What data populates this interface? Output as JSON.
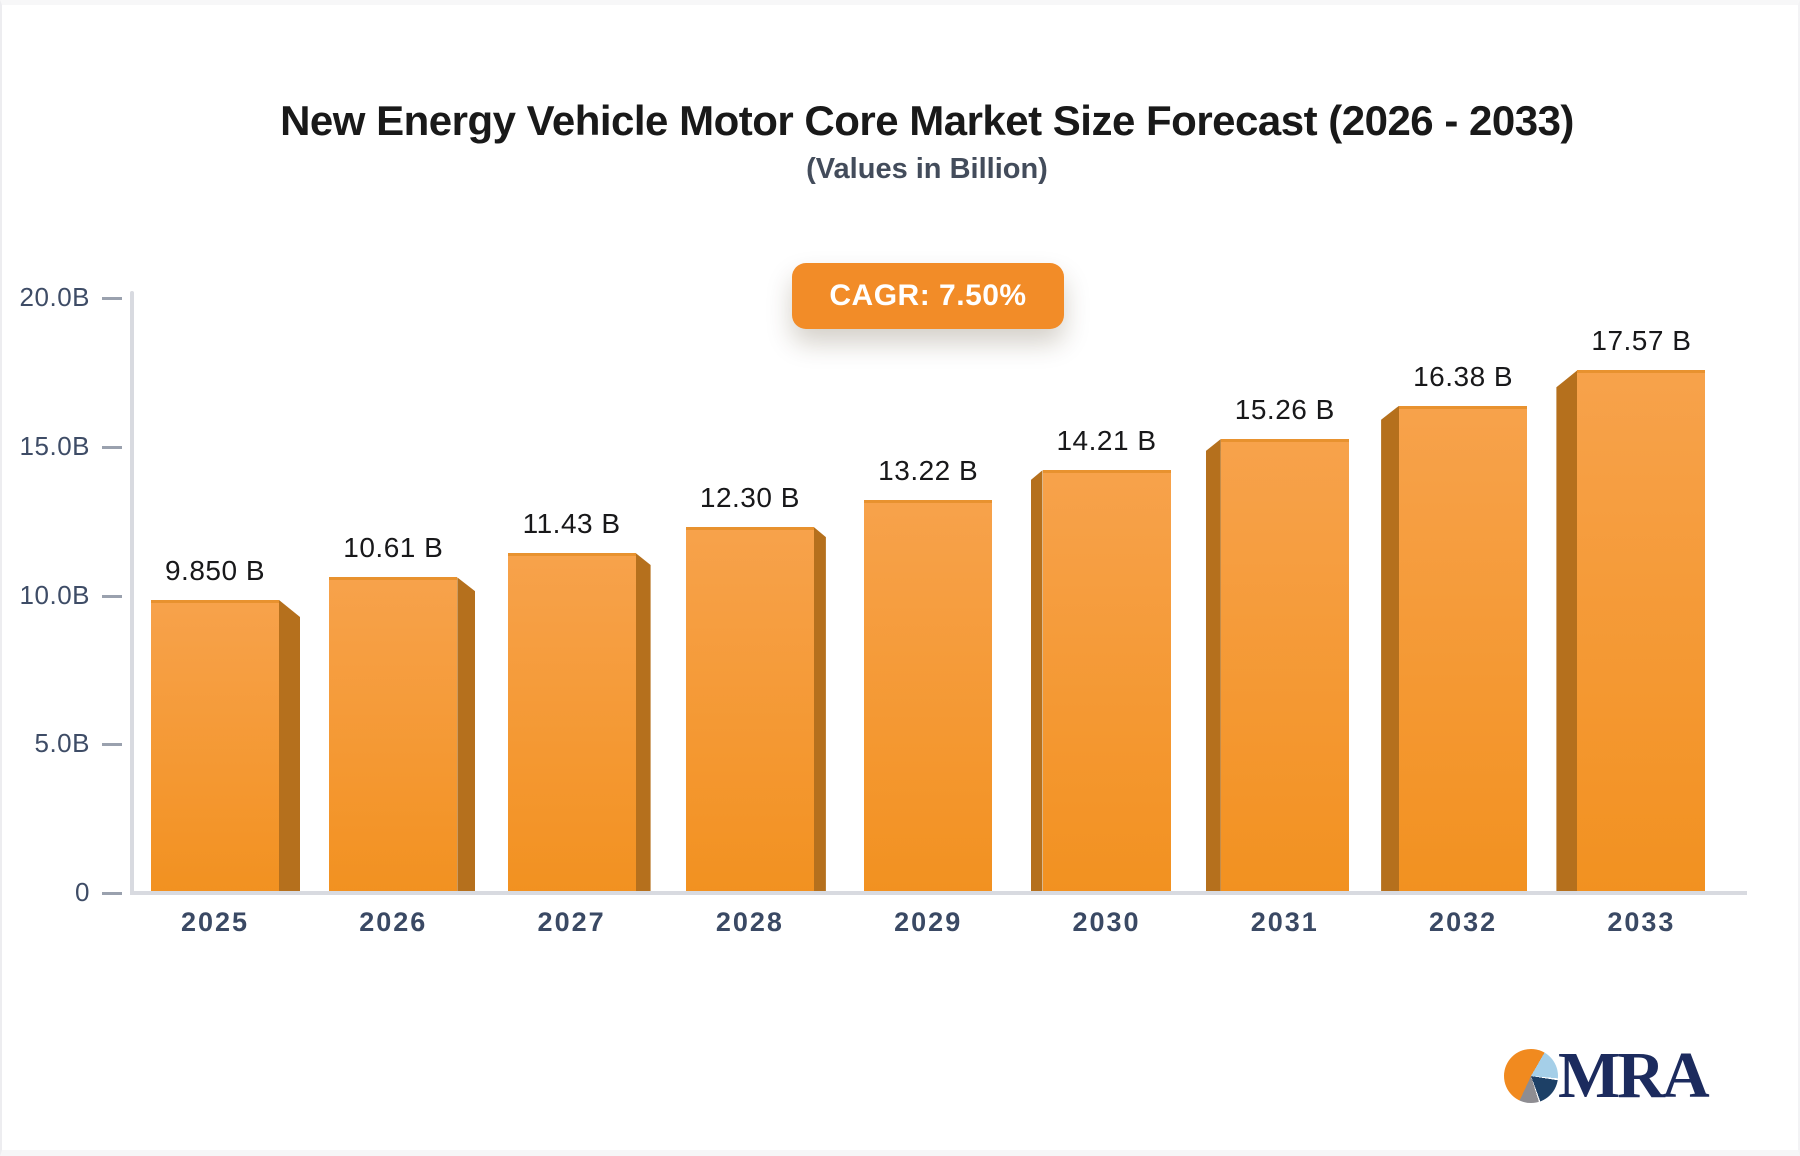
{
  "chart_data": {
    "type": "bar",
    "title": "New Energy Vehicle Motor Core Market Size Forecast (2026 - 2033)",
    "subtitle": "(Values in Billion)",
    "cagr_badge": "CAGR: 7.50%",
    "categories": [
      "2025",
      "2026",
      "2027",
      "2028",
      "2029",
      "2030",
      "2031",
      "2032",
      "2033"
    ],
    "values": [
      9.85,
      10.61,
      11.43,
      12.3,
      13.22,
      14.21,
      15.26,
      16.38,
      17.57
    ],
    "value_labels": [
      "9.850 B",
      "10.61 B",
      "11.43 B",
      "12.30 B",
      "13.22 B",
      "14.21 B",
      "15.26 B",
      "16.38 B",
      "17.57 B"
    ],
    "xlabel": "",
    "ylabel": "",
    "ylim": [
      0,
      20
    ],
    "yticks": [
      {
        "value": 20,
        "label": "20.0B"
      },
      {
        "value": 15,
        "label": "15.0B"
      },
      {
        "value": 10,
        "label": "10.0B"
      },
      {
        "value": 5,
        "label": "5.0B"
      },
      {
        "value": 0,
        "label": "0"
      }
    ],
    "grid": false,
    "legend": null
  },
  "logo": {
    "text": "MRA"
  },
  "colors": {
    "bar_front_top": "#f7a24b",
    "bar_front_bottom": "#f29120",
    "bar_top_edge": "#e8922f",
    "bar_side": "#b5701d",
    "badge_bg": "#f28c28",
    "badge_text": "#ffffff",
    "axis_line": "#d8dae0",
    "tick_mark": "#9aa1ae",
    "axis_text": "#3e4c66",
    "value_text": "#18181a",
    "title_text": "#191919",
    "subtitle_text": "#434c5b",
    "logo_navy": "#1c2b5e",
    "logo_orange": "#f18a1f",
    "logo_lightblue": "#a5cfe8",
    "logo_gray": "#8e8d92"
  }
}
